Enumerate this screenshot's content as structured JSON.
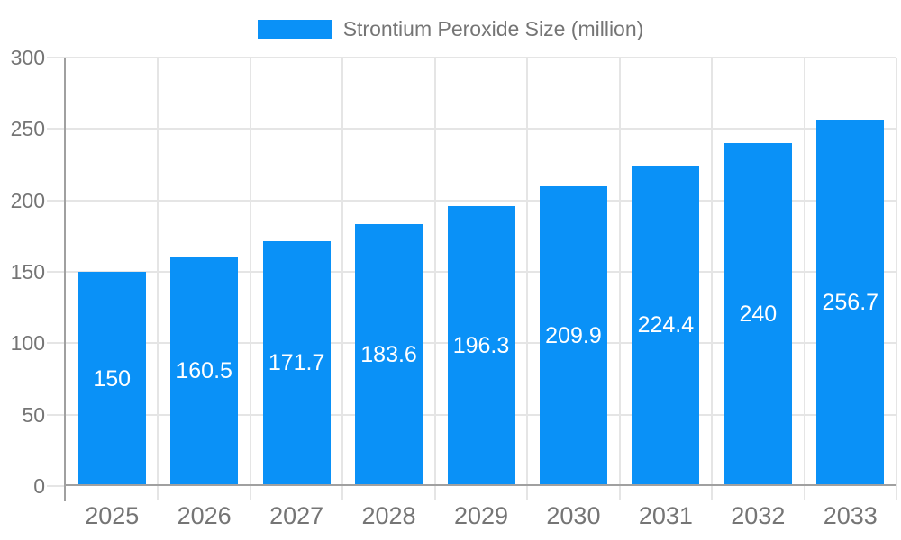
{
  "chart_data": {
    "type": "bar",
    "title": "Strontium Peroxide Size (million)",
    "legend": {
      "label": "Strontium Peroxide Size (million)",
      "position": "top"
    },
    "categories": [
      "2025",
      "2026",
      "2027",
      "2028",
      "2029",
      "2030",
      "2031",
      "2032",
      "2033"
    ],
    "series": [
      {
        "name": "Strontium Peroxide Size (million)",
        "values": [
          150,
          160.5,
          171.7,
          183.6,
          196.3,
          209.9,
          224.4,
          240,
          256.7
        ],
        "value_labels": [
          "150",
          "160.5",
          "171.7",
          "183.6",
          "196.3",
          "209.9",
          "224.4",
          "240",
          "256.7"
        ]
      }
    ],
    "xlabel": "",
    "ylabel": "",
    "ylim": [
      0,
      300
    ],
    "yticks": [
      0,
      50,
      100,
      150,
      200,
      250,
      300
    ],
    "grid": true,
    "value_labels_inside_bars": true,
    "colors": {
      "bar": "#0a91f7",
      "bar_label": "#ffffff",
      "axis": "#a0a0a0",
      "grid": "#e5e5e5",
      "text": "#757575",
      "background": "#ffffff"
    }
  }
}
